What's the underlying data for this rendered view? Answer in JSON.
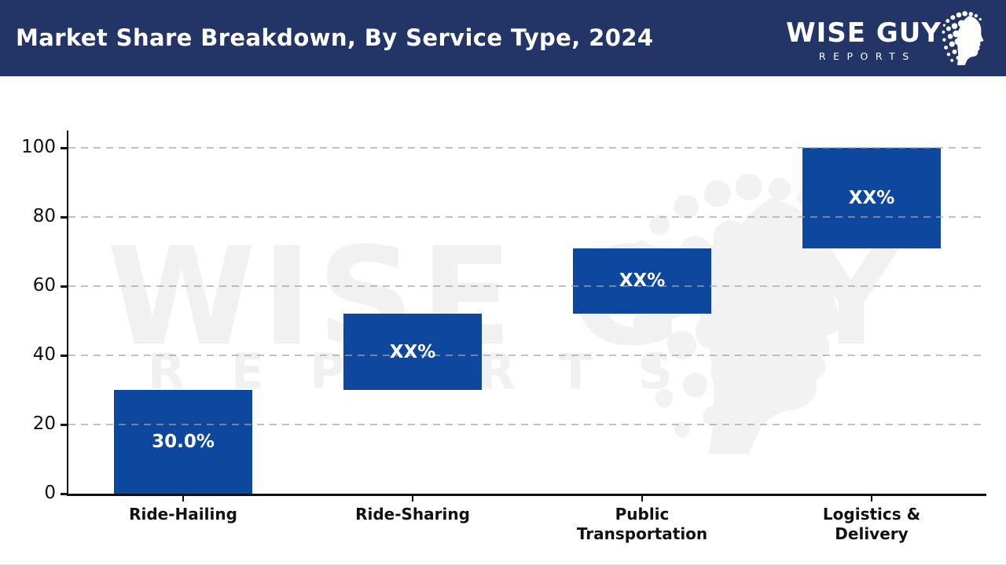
{
  "header": {
    "title": "Market Share Breakdown, By Service Type, 2024",
    "logo": {
      "brand_name": "WISE GUY",
      "brand_subtitle": "REPORTS"
    }
  },
  "watermark": {
    "brand_name": "WISE GUY",
    "brand_subtitle": "REPORTS"
  },
  "chart_data": {
    "type": "bar",
    "variant": "floating-waterfall",
    "title": "Market Share Breakdown, By Service Type, 2024",
    "categories": [
      "Ride-Hailing",
      "Ride-Sharing",
      "Public\nTransportation",
      "Logistics &\nDelivery"
    ],
    "bars": [
      {
        "category": "Ride-Hailing",
        "start": 0,
        "end": 30,
        "label": "30.0%"
      },
      {
        "category": "Ride-Sharing",
        "start": 30,
        "end": 52,
        "label": "XX%"
      },
      {
        "category": "Public Transportation",
        "start": 52,
        "end": 71,
        "label": "XX%"
      },
      {
        "category": "Logistics & Delivery",
        "start": 71,
        "end": 100,
        "label": "XX%"
      }
    ],
    "xlabel": "",
    "ylabel": "",
    "yticks": [
      0,
      20,
      40,
      60,
      80,
      100
    ],
    "ylim": [
      0,
      105
    ],
    "grid": "horizontal-dashed-over-bars",
    "legend": "none",
    "colors": {
      "bar": "#0d479e",
      "header_bg": "#223566",
      "grid": "#a3a3a3",
      "axis": "#111111",
      "bar_label_text": "#ffffff",
      "watermark": "#f1f1f1"
    }
  }
}
